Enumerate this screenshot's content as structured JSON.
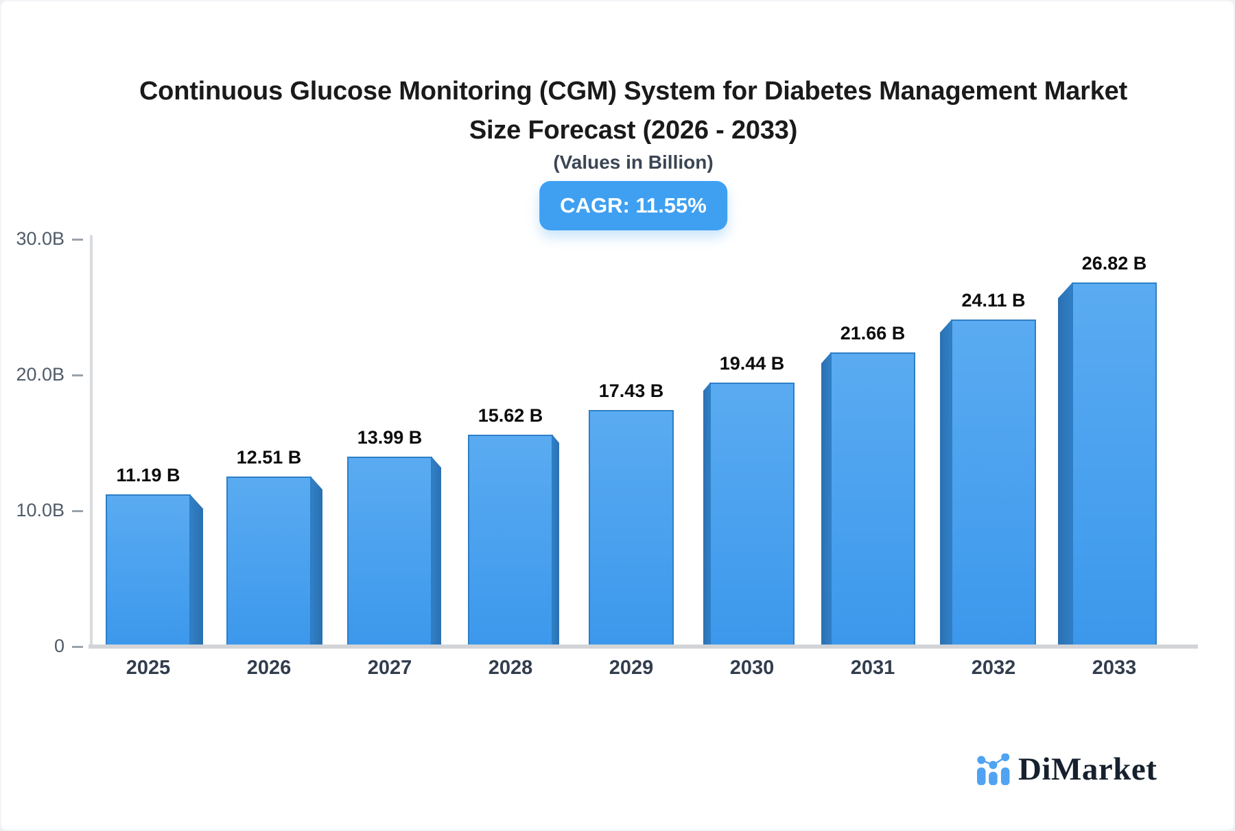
{
  "header": {
    "title_line1": "Continuous Glucose Monitoring (CGM) System for Diabetes Management Market",
    "title_line2": "Size Forecast (2026 - 2033)",
    "subtitle": "(Values in Billion)",
    "cagr_badge": "CAGR: 11.55%"
  },
  "footer": {
    "brand": "DiMarket",
    "brand_icon": "bar-chart-logo-icon"
  },
  "chart_data": {
    "type": "bar",
    "title": "Continuous Glucose Monitoring (CGM) System for Diabetes Management Market Size Forecast (2026 - 2033)",
    "subtitle": "(Values in Billion)",
    "annotation": "CAGR: 11.55%",
    "categories": [
      "2025",
      "2026",
      "2027",
      "2028",
      "2029",
      "2030",
      "2031",
      "2032",
      "2033"
    ],
    "values": [
      11.19,
      12.51,
      13.99,
      15.62,
      17.43,
      19.44,
      21.66,
      24.11,
      26.82
    ],
    "value_labels": [
      "11.19 B",
      "12.51 B",
      "13.99 B",
      "15.62 B",
      "17.43 B",
      "19.44 B",
      "21.66 B",
      "24.11 B",
      "26.82 B"
    ],
    "unit": "Billion",
    "xlabel": "",
    "ylabel": "",
    "ylim": [
      0,
      30
    ],
    "yticks": [
      {
        "label": "30.0B",
        "value": 30
      },
      {
        "label": "20.0B",
        "value": 20
      },
      {
        "label": "10.0B",
        "value": 10
      },
      {
        "label": "0",
        "value": 0
      }
    ],
    "grid": false,
    "legend": false,
    "colors": {
      "bar_face_top": "#5aabf1",
      "bar_face_bottom": "#3c98ec",
      "bar_side_dark": "#2b70b2",
      "bar_side_light": "#3180c6",
      "bar_stroke": "#2e7ec6",
      "badge_bg": "#3fa0f2",
      "axis_line": "#d8dbde",
      "tick_text": "#4f5b68",
      "x_label_text": "#323d4e",
      "logo_blue": "#4fa3f2"
    }
  }
}
